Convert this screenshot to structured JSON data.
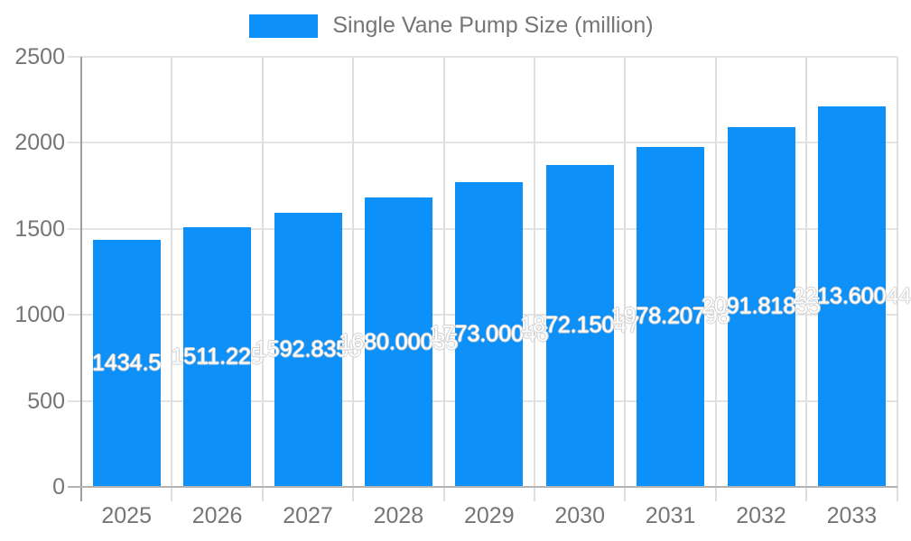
{
  "legend": {
    "label": "Single Vane Pump Size (million)"
  },
  "colors": {
    "bar": "#0d90f7",
    "value_label_text": "#ffffff",
    "axis_text": "#757575",
    "grid_line": "#e3e3e3",
    "vertical_grid_line": "#dedede",
    "x_axis_line": "#b3b3b3",
    "y_axis_line": "#9e9e9e",
    "background": "#ffffff"
  },
  "chart_data": {
    "type": "bar",
    "title": "Single Vane Pump Size (million)",
    "categories": [
      "2025",
      "2026",
      "2027",
      "2028",
      "2029",
      "2030",
      "2031",
      "2032",
      "2033"
    ],
    "series": [
      {
        "name": "Single Vane Pump Size (million)",
        "values": [
          1434.5,
          1511.225,
          1592.8355,
          1680.00035,
          1773.00046,
          1872.15047,
          1978.20798,
          2091.81835,
          2213.60044
        ]
      }
    ],
    "value_labels": [
      "1434.5",
      "1511.225",
      "1592.8355",
      "1680.00035",
      "1773.00046",
      "1872.15047",
      "1978.20798",
      "2091.81835",
      "2213.60044"
    ],
    "xlabel": "",
    "ylabel": "",
    "ylim": [
      0,
      2500
    ],
    "yticks": [
      0,
      500,
      1000,
      1500,
      2000,
      2500
    ],
    "grid": true,
    "legend_position": "top"
  }
}
